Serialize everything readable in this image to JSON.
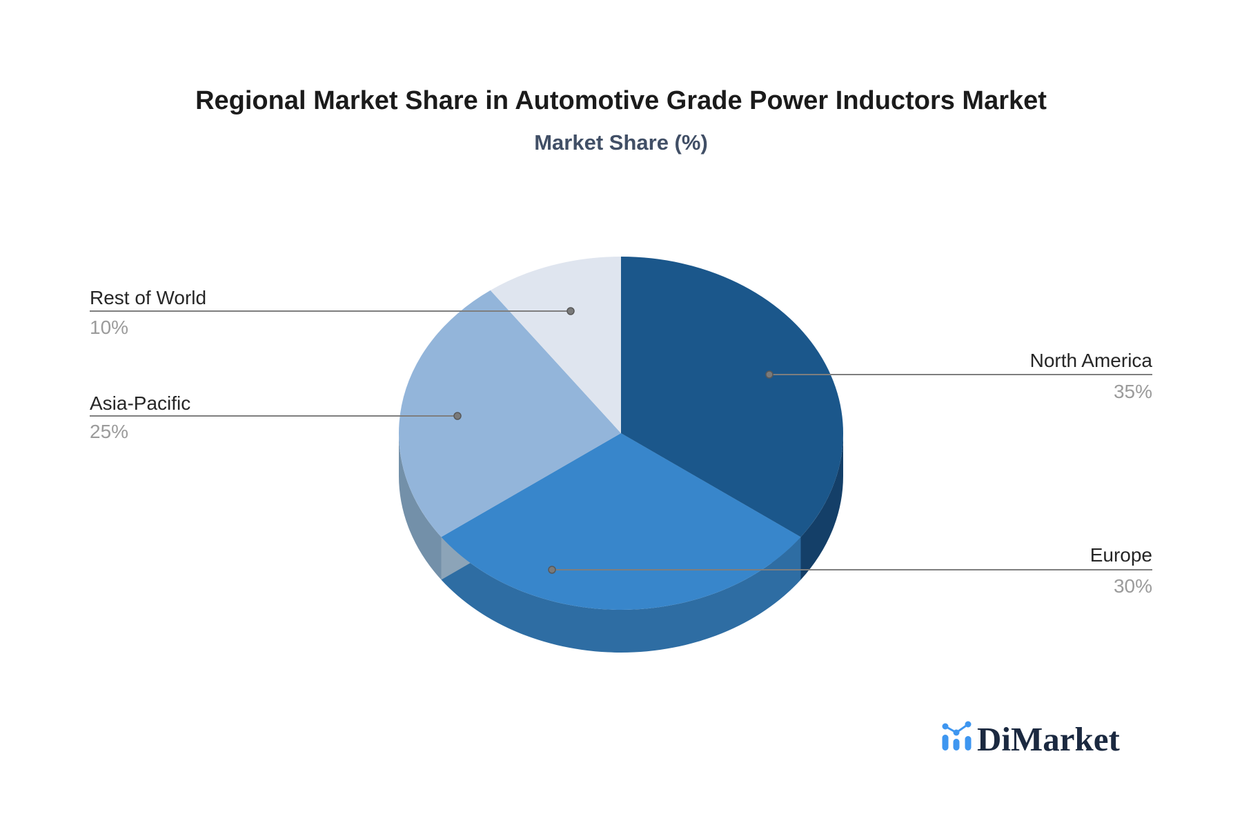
{
  "header": {
    "title": "Regional Market Share in Automotive Grade Power Inductors Market",
    "subtitle": "Market Share (%)"
  },
  "chart_data": {
    "type": "pie",
    "style": "3d",
    "title": "Regional Market Share in Automotive Grade Power Inductors Market",
    "subtitle": "Market Share (%)",
    "unit": "%",
    "direction": "clockwise",
    "start_angle": "12-oclock",
    "legend_position": "callout-labels",
    "segments": [
      {
        "label": "North America",
        "value": 35,
        "display_value": "35%",
        "color": "#1B578B",
        "side_color": "#143F68",
        "label_side": "right"
      },
      {
        "label": "Europe",
        "value": 30,
        "display_value": "30%",
        "color": "#3886CB",
        "side_color": "#2E6DA3",
        "label_side": "right"
      },
      {
        "label": "Asia-Pacific",
        "value": 25,
        "display_value": "25%",
        "color": "#93B5DA",
        "side_color": "#7390A9",
        "label_side": "left"
      },
      {
        "label": "Rest of World",
        "value": 10,
        "display_value": "10%",
        "color": "#DFE5EF",
        "side_color": "#C3CEDD",
        "label_side": "left"
      }
    ]
  },
  "logo": {
    "text": "DiMarket",
    "icon": "bar-line-chart-icon",
    "icon_color": "#3E96F0",
    "text_color": "#1B2940"
  },
  "style_colors": {
    "title": "#1B1B1B",
    "subtitle": "#414F66",
    "label": "#262626",
    "value": "#9B9B9B",
    "leader_line": "#7E7E7E",
    "dot_fill": "#7A7A7A",
    "dot_ring": "#585858",
    "background": "#FFFFFF"
  }
}
